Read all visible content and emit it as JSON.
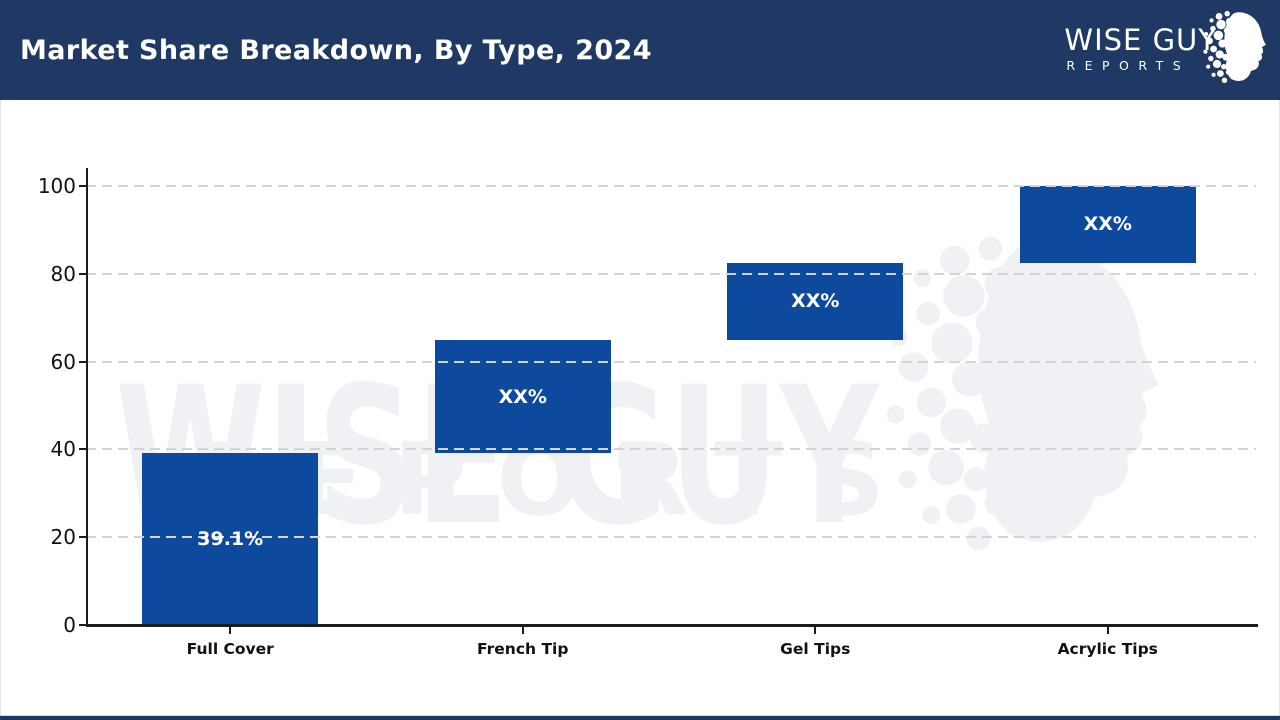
{
  "header": {
    "title": "Market Share Breakdown, By Type, 2024",
    "logo": {
      "name": "WISE GUY",
      "tagline": "REPORTS"
    }
  },
  "watermark": {
    "name": "WISE GUY",
    "tagline": "REPORTS"
  },
  "colors": {
    "header_bg": "#1f3864",
    "footer_bg": "#1f3864",
    "bar": "#0d4a9e",
    "bar_label": "#ffffff",
    "grid": "#d4d4d4",
    "axis": "#1c1c1c",
    "watermark": "#eff1f5"
  },
  "chart_data": {
    "type": "bar",
    "subtype": "floating_segment_bars",
    "title": "Market Share Breakdown, By Type, 2024",
    "xlabel": "",
    "ylabel": "",
    "categories": [
      "Full Cover",
      "French Tip",
      "Gel Tips",
      "Acrylic Tips"
    ],
    "bars": [
      {
        "category": "Full Cover",
        "start": 0,
        "end": 39.1,
        "label": "39.1%"
      },
      {
        "category": "French Tip",
        "start": 39.1,
        "end": 65.0,
        "label": "XX%"
      },
      {
        "category": "Gel Tips",
        "start": 65.0,
        "end": 82.5,
        "label": "XX%"
      },
      {
        "category": "Acrylic Tips",
        "start": 82.5,
        "end": 100.0,
        "label": "XX%"
      }
    ],
    "yticks": [
      0,
      20,
      40,
      60,
      80,
      100
    ],
    "ylim": [
      0,
      104
    ],
    "grid": "horizontal dashed, drawn above bars",
    "legend": "none"
  }
}
